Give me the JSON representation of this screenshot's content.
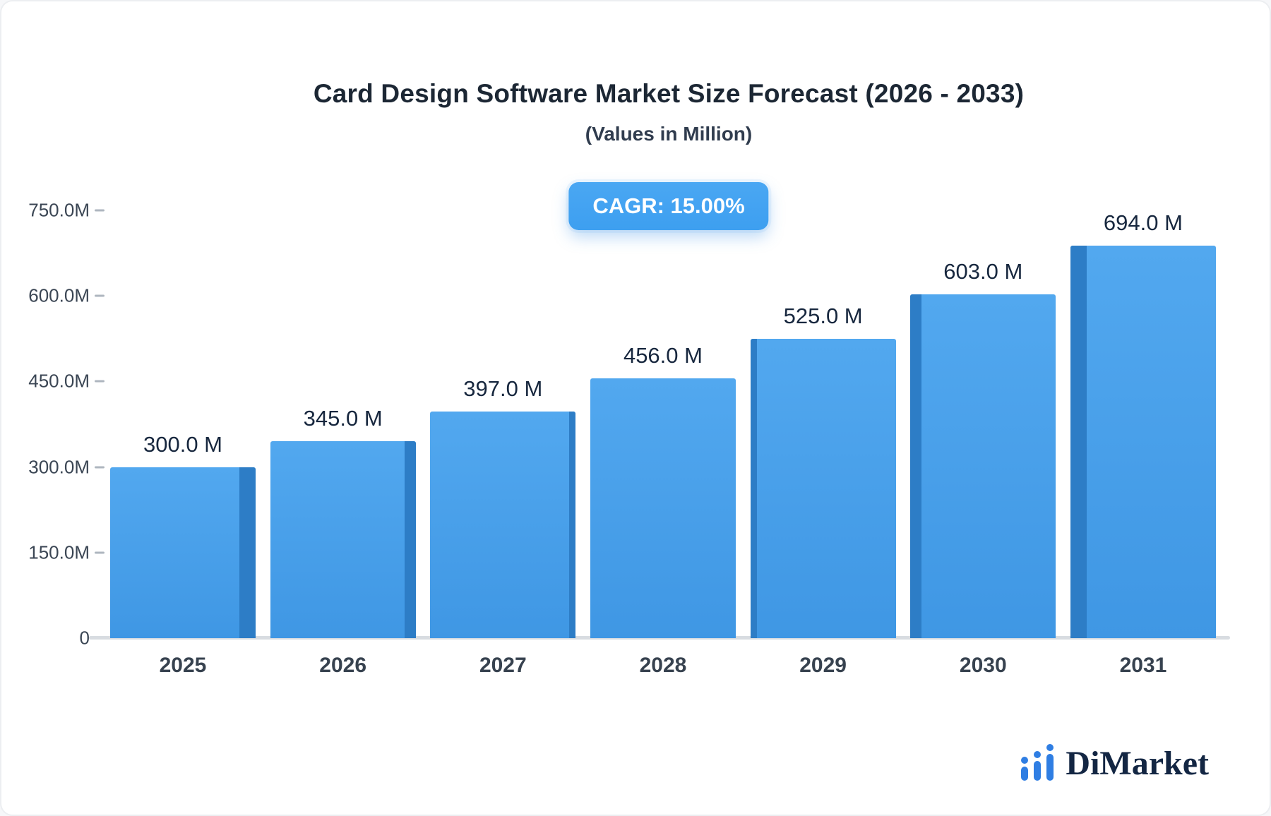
{
  "title": "Card Design Software Market Size Forecast (2026 - 2033)",
  "subtitle": "(Values in Million)",
  "badge": {
    "label": "CAGR: 15.00%",
    "color": "#3d9ff0",
    "color_light": "#4aa7f3"
  },
  "logo": {
    "text": "DiMarket",
    "icon": "bar-chart-icon",
    "icon_color": "#2f7ee3",
    "text_color": "#132643"
  },
  "chart_data": {
    "type": "bar",
    "title": "Card Design Software Market Size Forecast (2026 - 2033)",
    "subtitle": "(Values in Million)",
    "categories": [
      "2025",
      "2026",
      "2027",
      "2028",
      "2029",
      "2030",
      "2031"
    ],
    "values": [
      300,
      345,
      397,
      456,
      525,
      603,
      694
    ],
    "value_labels": [
      "300.0 M",
      "345.0 M",
      "397.0 M",
      "456.0 M",
      "525.0 M",
      "603.0 M",
      "694.0 M"
    ],
    "y_ticks": [
      "750.0M",
      "600.0M",
      "450.0M",
      "300.0M",
      "150.0M",
      "0"
    ],
    "ylim": [
      0,
      750
    ],
    "xlabel": "",
    "ylabel": "",
    "grid": "off",
    "legend": "none",
    "bar_color": "#3f97e4",
    "bar_color_light": "#52a8ef",
    "bar_side_color": "#2d7dc6",
    "baseline_color": "#d8dce1"
  }
}
